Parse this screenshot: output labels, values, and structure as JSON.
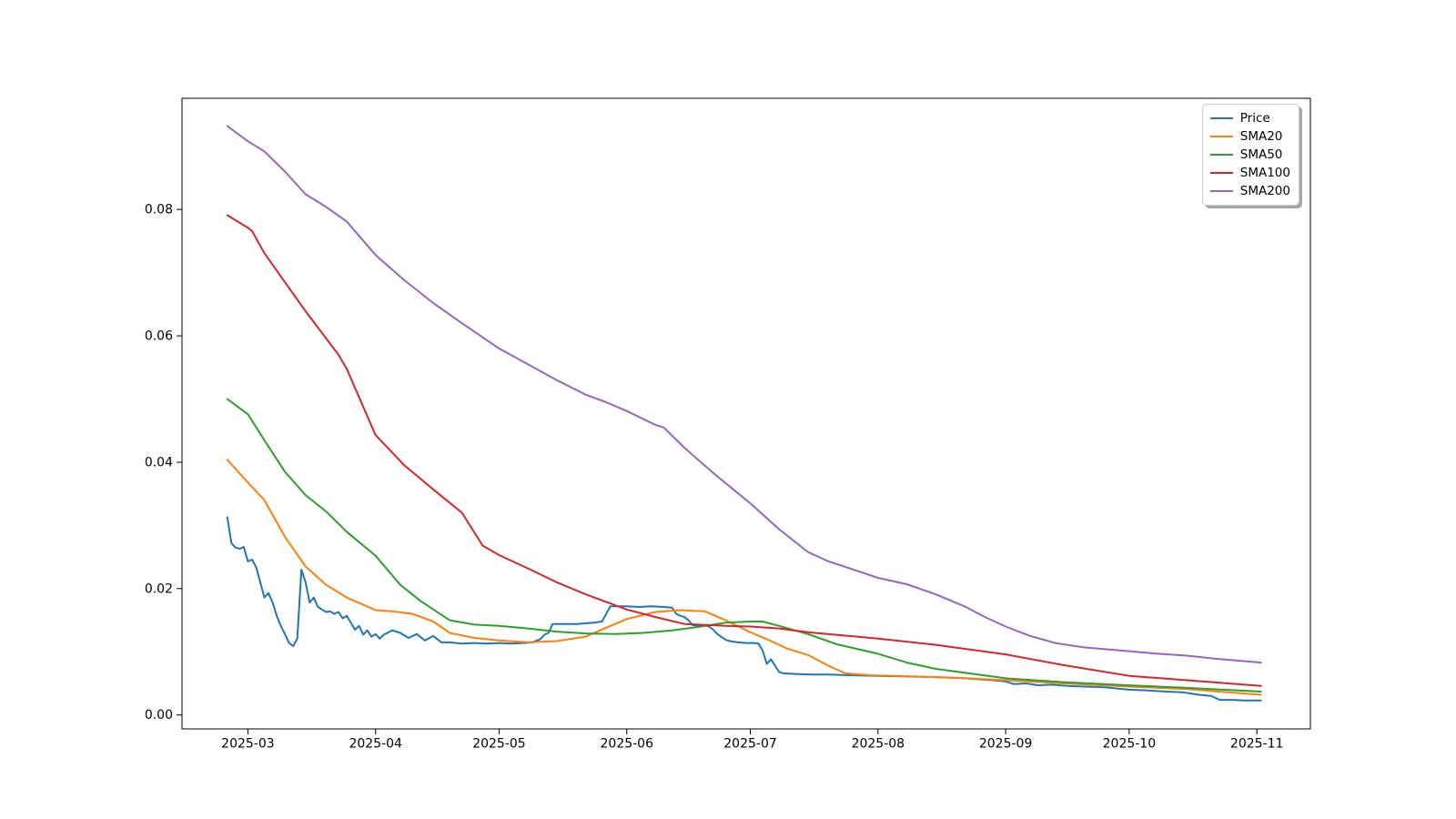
{
  "figure": {
    "background": "#ffffff",
    "plot_background": "#ffffff",
    "spine_color": "#000000"
  },
  "chart_data": {
    "type": "line",
    "title": "",
    "xlabel": "",
    "ylabel": "",
    "grid": false,
    "xlim": [
      "2025-02-13",
      "2025-11-14"
    ],
    "ylim": [
      -0.0022,
      0.0976
    ],
    "x_tick_labels": [
      "2025-03",
      "2025-04",
      "2025-05",
      "2025-06",
      "2025-07",
      "2025-08",
      "2025-09",
      "2025-10",
      "2025-11"
    ],
    "y_ticks": [
      {
        "value": 0.0,
        "label": "0.00"
      },
      {
        "value": 0.02,
        "label": "0.02"
      },
      {
        "value": 0.04,
        "label": "0.04"
      },
      {
        "value": 0.06,
        "label": "0.06"
      },
      {
        "value": 0.08,
        "label": "0.08"
      }
    ],
    "legend": {
      "position": "upper right",
      "entries": [
        "Price",
        "SMA20",
        "SMA50",
        "SMA100",
        "SMA200"
      ]
    },
    "series": [
      {
        "name": "Price",
        "color": "#1f77b4",
        "points": [
          [
            "2025-02-24",
            0.0313
          ],
          [
            "2025-02-25",
            0.0272
          ],
          [
            "2025-02-26",
            0.0265
          ],
          [
            "2025-02-27",
            0.0263
          ],
          [
            "2025-02-28",
            0.0266
          ],
          [
            "2025-03-01",
            0.0243
          ],
          [
            "2025-03-02",
            0.0246
          ],
          [
            "2025-03-03",
            0.0234
          ],
          [
            "2025-03-04",
            0.021
          ],
          [
            "2025-03-05",
            0.0186
          ],
          [
            "2025-03-06",
            0.0193
          ],
          [
            "2025-03-07",
            0.0178
          ],
          [
            "2025-03-08",
            0.0157
          ],
          [
            "2025-03-09",
            0.0141
          ],
          [
            "2025-03-10",
            0.0128
          ],
          [
            "2025-03-11",
            0.0114
          ],
          [
            "2025-03-12",
            0.0109
          ],
          [
            "2025-03-13",
            0.0121
          ],
          [
            "2025-03-14",
            0.023
          ],
          [
            "2025-03-15",
            0.021
          ],
          [
            "2025-03-16",
            0.0178
          ],
          [
            "2025-03-17",
            0.0186
          ],
          [
            "2025-03-18",
            0.0171
          ],
          [
            "2025-03-19",
            0.0167
          ],
          [
            "2025-03-20",
            0.0163
          ],
          [
            "2025-03-21",
            0.0164
          ],
          [
            "2025-03-22",
            0.016
          ],
          [
            "2025-03-23",
            0.0163
          ],
          [
            "2025-03-24",
            0.0153
          ],
          [
            "2025-03-25",
            0.0157
          ],
          [
            "2025-03-27",
            0.0135
          ],
          [
            "2025-03-28",
            0.0141
          ],
          [
            "2025-03-29",
            0.0127
          ],
          [
            "2025-03-30",
            0.0134
          ],
          [
            "2025-03-31",
            0.0124
          ],
          [
            "2025-04-01",
            0.0128
          ],
          [
            "2025-04-02",
            0.0121
          ],
          [
            "2025-04-03",
            0.0127
          ],
          [
            "2025-04-05",
            0.0134
          ],
          [
            "2025-04-07",
            0.013
          ],
          [
            "2025-04-09",
            0.0122
          ],
          [
            "2025-04-11",
            0.0128
          ],
          [
            "2025-04-13",
            0.0118
          ],
          [
            "2025-04-15",
            0.0125
          ],
          [
            "2025-04-17",
            0.0115
          ],
          [
            "2025-04-19",
            0.0115
          ],
          [
            "2025-04-22",
            0.0113
          ],
          [
            "2025-04-25",
            0.0114
          ],
          [
            "2025-04-28",
            0.0113
          ],
          [
            "2025-05-01",
            0.0114
          ],
          [
            "2025-05-04",
            0.0113
          ],
          [
            "2025-05-07",
            0.0114
          ],
          [
            "2025-05-09",
            0.0115
          ],
          [
            "2025-05-11",
            0.012
          ],
          [
            "2025-05-12",
            0.0127
          ],
          [
            "2025-05-13",
            0.013
          ],
          [
            "2025-05-14",
            0.0144
          ],
          [
            "2025-05-16",
            0.0144
          ],
          [
            "2025-05-20",
            0.0144
          ],
          [
            "2025-05-24",
            0.0146
          ],
          [
            "2025-05-26",
            0.0148
          ],
          [
            "2025-05-27",
            0.016
          ],
          [
            "2025-05-28",
            0.0172
          ],
          [
            "2025-06-01",
            0.0172
          ],
          [
            "2025-06-04",
            0.0171
          ],
          [
            "2025-06-07",
            0.0172
          ],
          [
            "2025-06-10",
            0.0171
          ],
          [
            "2025-06-12",
            0.017
          ],
          [
            "2025-06-13",
            0.016
          ],
          [
            "2025-06-14",
            0.0157
          ],
          [
            "2025-06-15",
            0.0155
          ],
          [
            "2025-06-16",
            0.015
          ],
          [
            "2025-06-17",
            0.0142
          ],
          [
            "2025-06-20",
            0.0142
          ],
          [
            "2025-06-21",
            0.014
          ],
          [
            "2025-06-22",
            0.0135
          ],
          [
            "2025-06-23",
            0.0128
          ],
          [
            "2025-06-25",
            0.0119
          ],
          [
            "2025-06-26",
            0.0117
          ],
          [
            "2025-06-28",
            0.0115
          ],
          [
            "2025-06-30",
            0.0114
          ],
          [
            "2025-07-02",
            0.0114
          ],
          [
            "2025-07-03",
            0.0113
          ],
          [
            "2025-07-04",
            0.0102
          ],
          [
            "2025-07-05",
            0.0081
          ],
          [
            "2025-07-06",
            0.0088
          ],
          [
            "2025-07-07",
            0.0078
          ],
          [
            "2025-07-08",
            0.0068
          ],
          [
            "2025-07-09",
            0.0066
          ],
          [
            "2025-07-12",
            0.0065
          ],
          [
            "2025-07-16",
            0.0064
          ],
          [
            "2025-07-20",
            0.0064
          ],
          [
            "2025-07-25",
            0.0063
          ],
          [
            "2025-08-01",
            0.0062
          ],
          [
            "2025-08-08",
            0.0061
          ],
          [
            "2025-08-15",
            0.006
          ],
          [
            "2025-08-22",
            0.0058
          ],
          [
            "2025-08-29",
            0.0055
          ],
          [
            "2025-09-01",
            0.0053
          ],
          [
            "2025-09-03",
            0.0049
          ],
          [
            "2025-09-06",
            0.005
          ],
          [
            "2025-09-09",
            0.0047
          ],
          [
            "2025-09-12",
            0.0048
          ],
          [
            "2025-09-16",
            0.0046
          ],
          [
            "2025-09-20",
            0.0045
          ],
          [
            "2025-09-25",
            0.0044
          ],
          [
            "2025-10-01",
            0.004
          ],
          [
            "2025-10-05",
            0.0039
          ],
          [
            "2025-10-10",
            0.0037
          ],
          [
            "2025-10-14",
            0.0036
          ],
          [
            "2025-10-18",
            0.0032
          ],
          [
            "2025-10-21",
            0.003
          ],
          [
            "2025-10-23",
            0.0024
          ],
          [
            "2025-10-26",
            0.0024
          ],
          [
            "2025-10-29",
            0.0023
          ],
          [
            "2025-11-02",
            0.0023
          ]
        ]
      },
      {
        "name": "SMA20",
        "color": "#ff7f0e",
        "points": [
          [
            "2025-02-24",
            0.0404
          ],
          [
            "2025-03-01",
            0.0368
          ],
          [
            "2025-03-05",
            0.034
          ],
          [
            "2025-03-10",
            0.0282
          ],
          [
            "2025-03-15",
            0.0235
          ],
          [
            "2025-03-20",
            0.0206
          ],
          [
            "2025-03-25",
            0.0186
          ],
          [
            "2025-04-01",
            0.0166
          ],
          [
            "2025-04-05",
            0.0164
          ],
          [
            "2025-04-10",
            0.016
          ],
          [
            "2025-04-15",
            0.0148
          ],
          [
            "2025-04-19",
            0.013
          ],
          [
            "2025-04-25",
            0.0122
          ],
          [
            "2025-05-01",
            0.0118
          ],
          [
            "2025-05-08",
            0.0115
          ],
          [
            "2025-05-15",
            0.0117
          ],
          [
            "2025-05-22",
            0.0124
          ],
          [
            "2025-06-01",
            0.0152
          ],
          [
            "2025-06-08",
            0.0163
          ],
          [
            "2025-06-14",
            0.0166
          ],
          [
            "2025-06-20",
            0.0164
          ],
          [
            "2025-06-25",
            0.015
          ],
          [
            "2025-07-01",
            0.0131
          ],
          [
            "2025-07-05",
            0.012
          ],
          [
            "2025-07-10",
            0.0105
          ],
          [
            "2025-07-15",
            0.0095
          ],
          [
            "2025-07-20",
            0.0078
          ],
          [
            "2025-07-24",
            0.0066
          ],
          [
            "2025-07-30",
            0.0063
          ],
          [
            "2025-08-10",
            0.0061
          ],
          [
            "2025-08-20",
            0.0059
          ],
          [
            "2025-09-01",
            0.0055
          ],
          [
            "2025-09-15",
            0.005
          ],
          [
            "2025-10-01",
            0.0045
          ],
          [
            "2025-10-15",
            0.0041
          ],
          [
            "2025-11-02",
            0.0032
          ]
        ]
      },
      {
        "name": "SMA50",
        "color": "#2ca02c",
        "points": [
          [
            "2025-02-24",
            0.05
          ],
          [
            "2025-03-01",
            0.0476
          ],
          [
            "2025-03-05",
            0.0435
          ],
          [
            "2025-03-10",
            0.0385
          ],
          [
            "2025-03-15",
            0.0348
          ],
          [
            "2025-03-20",
            0.0322
          ],
          [
            "2025-03-25",
            0.029
          ],
          [
            "2025-04-01",
            0.0252
          ],
          [
            "2025-04-07",
            0.0206
          ],
          [
            "2025-04-12",
            0.018
          ],
          [
            "2025-04-19",
            0.015
          ],
          [
            "2025-04-25",
            0.0143
          ],
          [
            "2025-05-01",
            0.0141
          ],
          [
            "2025-05-08",
            0.0137
          ],
          [
            "2025-05-15",
            0.0132
          ],
          [
            "2025-05-22",
            0.0129
          ],
          [
            "2025-05-29",
            0.0128
          ],
          [
            "2025-06-05",
            0.013
          ],
          [
            "2025-06-12",
            0.0134
          ],
          [
            "2025-06-19",
            0.014
          ],
          [
            "2025-06-25",
            0.0146
          ],
          [
            "2025-07-01",
            0.0148
          ],
          [
            "2025-07-04",
            0.0148
          ],
          [
            "2025-07-08",
            0.0141
          ],
          [
            "2025-07-15",
            0.0128
          ],
          [
            "2025-07-22",
            0.0112
          ],
          [
            "2025-08-01",
            0.0097
          ],
          [
            "2025-08-08",
            0.0083
          ],
          [
            "2025-08-15",
            0.0073
          ],
          [
            "2025-08-22",
            0.0067
          ],
          [
            "2025-09-01",
            0.0058
          ],
          [
            "2025-09-15",
            0.0052
          ],
          [
            "2025-10-01",
            0.0047
          ],
          [
            "2025-10-15",
            0.0043
          ],
          [
            "2025-11-02",
            0.0037
          ]
        ]
      },
      {
        "name": "SMA100",
        "color": "#d62728",
        "points": [
          [
            "2025-02-24",
            0.0791
          ],
          [
            "2025-03-01",
            0.0771
          ],
          [
            "2025-03-02",
            0.0766
          ],
          [
            "2025-03-05",
            0.0731
          ],
          [
            "2025-03-10",
            0.0685
          ],
          [
            "2025-03-15",
            0.0639
          ],
          [
            "2025-03-20",
            0.0596
          ],
          [
            "2025-03-23",
            0.057
          ],
          [
            "2025-03-25",
            0.0548
          ],
          [
            "2025-04-01",
            0.0443
          ],
          [
            "2025-04-08",
            0.0395
          ],
          [
            "2025-04-15",
            0.0357
          ],
          [
            "2025-04-22",
            0.032
          ],
          [
            "2025-04-27",
            0.0268
          ],
          [
            "2025-05-01",
            0.0253
          ],
          [
            "2025-05-08",
            0.0232
          ],
          [
            "2025-05-15",
            0.021
          ],
          [
            "2025-05-22",
            0.0191
          ],
          [
            "2025-06-01",
            0.0167
          ],
          [
            "2025-06-08",
            0.0155
          ],
          [
            "2025-06-15",
            0.0144
          ],
          [
            "2025-06-22",
            0.0142
          ],
          [
            "2025-06-25",
            0.0141
          ],
          [
            "2025-07-01",
            0.014
          ],
          [
            "2025-07-08",
            0.0137
          ],
          [
            "2025-07-15",
            0.0131
          ],
          [
            "2025-08-01",
            0.0121
          ],
          [
            "2025-08-15",
            0.0111
          ],
          [
            "2025-09-01",
            0.0096
          ],
          [
            "2025-09-15",
            0.0079
          ],
          [
            "2025-10-01",
            0.0062
          ],
          [
            "2025-10-15",
            0.0055
          ],
          [
            "2025-11-02",
            0.0046
          ]
        ]
      },
      {
        "name": "SMA200",
        "color": "#9467bd",
        "points": [
          [
            "2025-02-24",
            0.0932
          ],
          [
            "2025-03-01",
            0.0908
          ],
          [
            "2025-03-05",
            0.0892
          ],
          [
            "2025-03-10",
            0.086
          ],
          [
            "2025-03-15",
            0.0824
          ],
          [
            "2025-03-20",
            0.0804
          ],
          [
            "2025-03-25",
            0.0781
          ],
          [
            "2025-04-01",
            0.0728
          ],
          [
            "2025-04-08",
            0.0688
          ],
          [
            "2025-04-15",
            0.0652
          ],
          [
            "2025-04-22",
            0.062
          ],
          [
            "2025-05-01",
            0.058
          ],
          [
            "2025-05-08",
            0.0555
          ],
          [
            "2025-05-15",
            0.053
          ],
          [
            "2025-05-22",
            0.0507
          ],
          [
            "2025-05-27",
            0.0495
          ],
          [
            "2025-06-01",
            0.0481
          ],
          [
            "2025-06-08",
            0.0459
          ],
          [
            "2025-06-10",
            0.0455
          ],
          [
            "2025-06-15",
            0.0423
          ],
          [
            "2025-06-22",
            0.0383
          ],
          [
            "2025-07-01",
            0.0335
          ],
          [
            "2025-07-08",
            0.0294
          ],
          [
            "2025-07-15",
            0.0258
          ],
          [
            "2025-07-20",
            0.0243
          ],
          [
            "2025-07-22",
            0.0239
          ],
          [
            "2025-08-01",
            0.0217
          ],
          [
            "2025-08-08",
            0.0207
          ],
          [
            "2025-08-15",
            0.0191
          ],
          [
            "2025-08-22",
            0.0172
          ],
          [
            "2025-08-27",
            0.0155
          ],
          [
            "2025-09-01",
            0.014
          ],
          [
            "2025-09-07",
            0.0125
          ],
          [
            "2025-09-13",
            0.0114
          ],
          [
            "2025-09-20",
            0.0107
          ],
          [
            "2025-10-01",
            0.0101
          ],
          [
            "2025-10-08",
            0.0097
          ],
          [
            "2025-10-15",
            0.0094
          ],
          [
            "2025-10-22",
            0.0089
          ],
          [
            "2025-11-02",
            0.0083
          ]
        ]
      }
    ]
  }
}
